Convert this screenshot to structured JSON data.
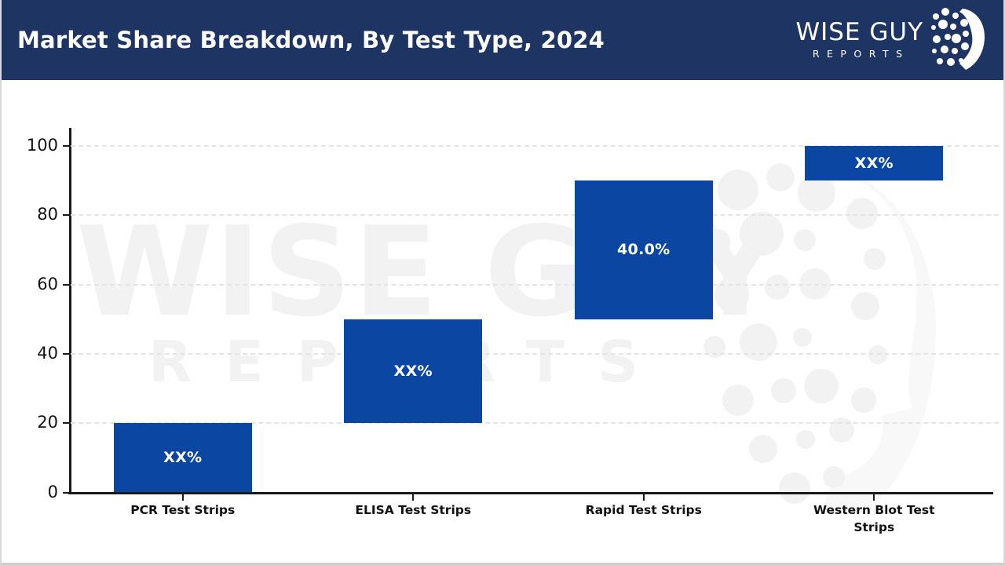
{
  "header": {
    "title": "Market Share Breakdown, By Test Type, 2024"
  },
  "logo": {
    "name": "WISE GUY",
    "sub": "REPORTS"
  },
  "watermark": {
    "line1": "WISE GUY",
    "line2": "REPORTS"
  },
  "colors": {
    "header_bg": "#1e3563",
    "bar": "#0b46a2",
    "grid": "#e4e4e4",
    "axis": "#1a1a1a",
    "watermark": "#f2f2f2"
  },
  "chart_data": {
    "type": "bar",
    "subtype": "floating-waterfall",
    "title": "Market Share Breakdown, By Test Type, 2024",
    "xlabel": "",
    "ylabel": "",
    "ylim": [
      0,
      105
    ],
    "yticks": [
      0,
      20,
      40,
      60,
      80,
      100
    ],
    "grid": "dashed-horizontal",
    "legend": "none",
    "categories": [
      "PCR Test Strips",
      "ELISA Test Strips",
      "Rapid Test Strips",
      "Western Blot Test Strips"
    ],
    "bars": [
      {
        "category": "PCR Test Strips",
        "start": 0,
        "end": 20,
        "value_label": "XX%"
      },
      {
        "category": "ELISA Test Strips",
        "start": 20,
        "end": 50,
        "value_label": "XX%"
      },
      {
        "category": "Rapid Test Strips",
        "start": 50,
        "end": 90,
        "value_label": "40.0%"
      },
      {
        "category": "Western Blot Test Strips",
        "start": 90,
        "end": 100,
        "value_label": "XX%"
      }
    ],
    "bar_color": "#0b46a2"
  }
}
